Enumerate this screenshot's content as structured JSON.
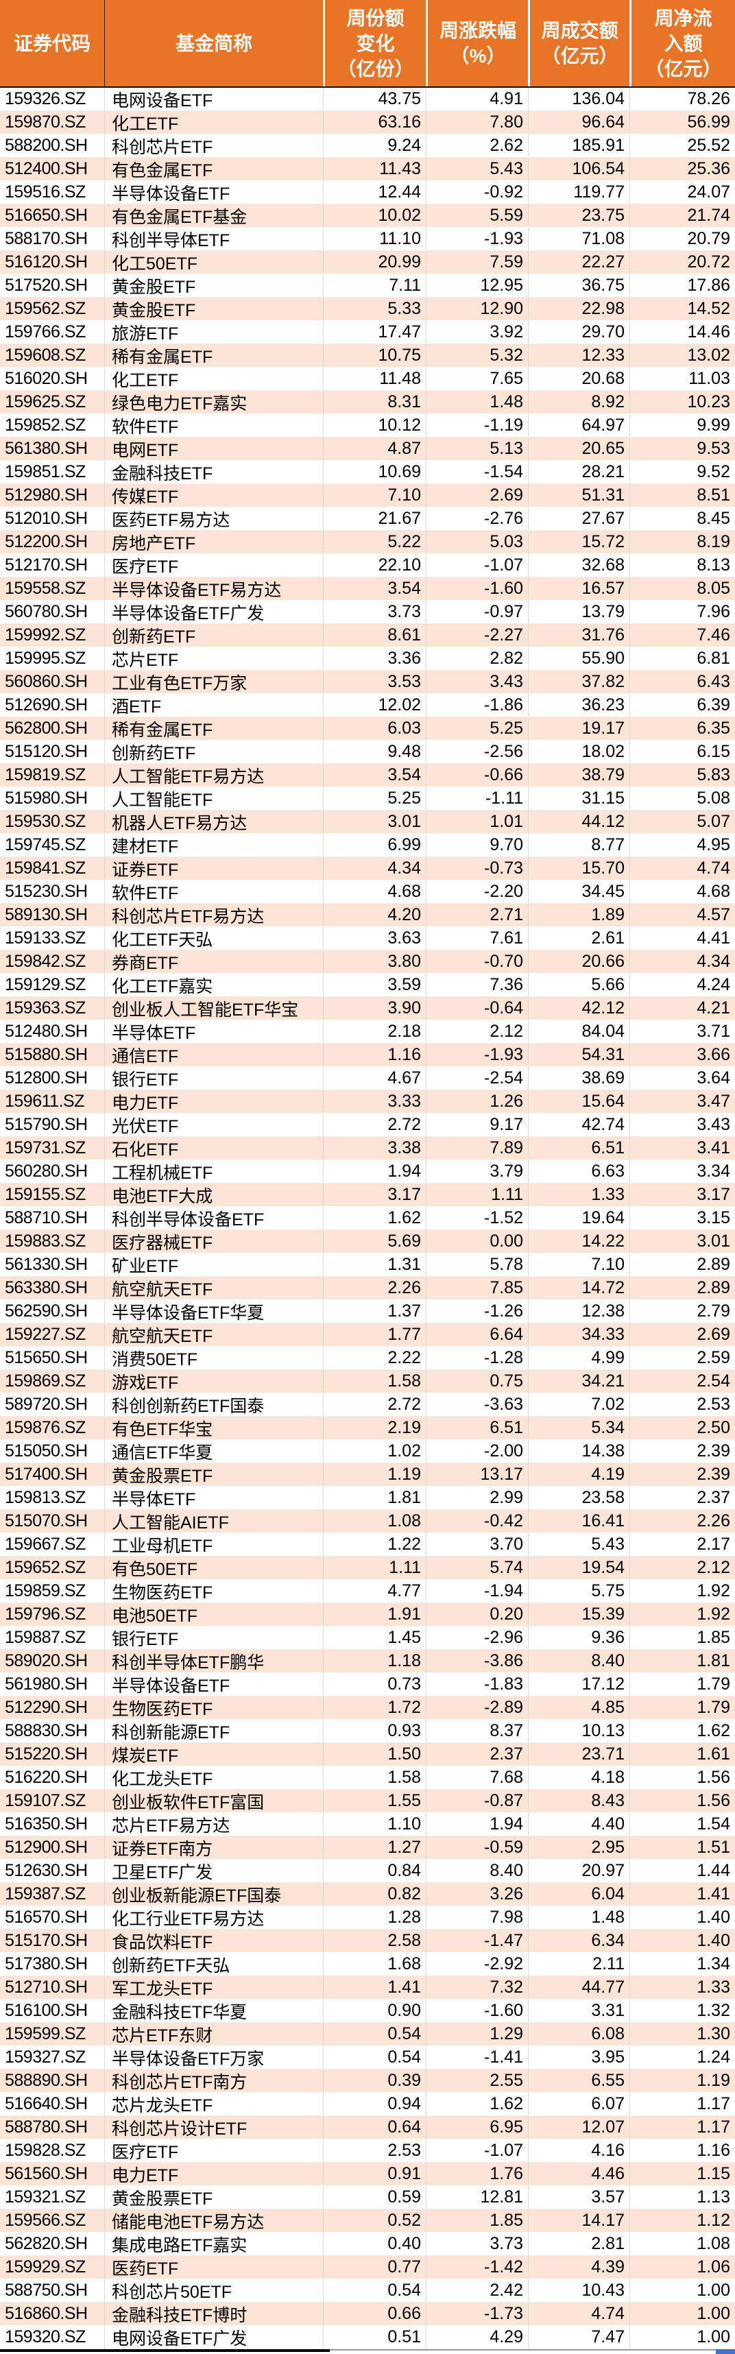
{
  "header": {
    "columns": [
      {
        "lines": [
          "证券代码"
        ]
      },
      {
        "lines": [
          "基金简称"
        ]
      },
      {
        "lines": [
          "周份额",
          "变化",
          "（亿份）"
        ]
      },
      {
        "lines": [
          "周涨跌幅",
          "（%）"
        ]
      },
      {
        "lines": [
          "周成交额",
          "（亿元）"
        ]
      },
      {
        "lines": [
          "周净流",
          "入额",
          "（亿元）"
        ]
      }
    ]
  },
  "colors": {
    "header_bg": "#E97425",
    "header_text": "#FFFFFF",
    "row_bg": "#FFFFFF",
    "row_alt_bg": "#FCE4D6",
    "body_text": "#000000",
    "bottom_accent": "#4472C4"
  },
  "chart_data": {
    "type": "table",
    "columns": [
      "证券代码",
      "基金简称",
      "周份额变化（亿份）",
      "周涨跌幅（%）",
      "周成交额（亿元）",
      "周净流入额（亿元）"
    ],
    "rows": [
      [
        "159326.SZ",
        "电网设备ETF",
        "43.75",
        "4.91",
        "136.04",
        "78.26"
      ],
      [
        "159870.SZ",
        "化工ETF",
        "63.16",
        "7.80",
        "96.64",
        "56.99"
      ],
      [
        "588200.SH",
        "科创芯片ETF",
        "9.24",
        "2.62",
        "185.91",
        "25.52"
      ],
      [
        "512400.SH",
        "有色金属ETF",
        "11.43",
        "5.43",
        "106.54",
        "25.36"
      ],
      [
        "159516.SZ",
        "半导体设备ETF",
        "12.44",
        "-0.92",
        "119.77",
        "24.07"
      ],
      [
        "516650.SH",
        "有色金属ETF基金",
        "10.02",
        "5.59",
        "23.75",
        "21.74"
      ],
      [
        "588170.SH",
        "科创半导体ETF",
        "11.10",
        "-1.93",
        "71.08",
        "20.79"
      ],
      [
        "516120.SH",
        "化工50ETF",
        "20.99",
        "7.59",
        "22.27",
        "20.72"
      ],
      [
        "517520.SH",
        "黄金股ETF",
        "7.11",
        "12.95",
        "36.75",
        "17.86"
      ],
      [
        "159562.SZ",
        "黄金股ETF",
        "5.33",
        "12.90",
        "22.98",
        "14.52"
      ],
      [
        "159766.SZ",
        "旅游ETF",
        "17.47",
        "3.92",
        "29.70",
        "14.46"
      ],
      [
        "159608.SZ",
        "稀有金属ETF",
        "10.75",
        "5.32",
        "12.33",
        "13.02"
      ],
      [
        "516020.SH",
        "化工ETF",
        "11.48",
        "7.65",
        "20.68",
        "11.03"
      ],
      [
        "159625.SZ",
        "绿色电力ETF嘉实",
        "8.31",
        "1.48",
        "8.92",
        "10.23"
      ],
      [
        "159852.SZ",
        "软件ETF",
        "10.12",
        "-1.19",
        "64.97",
        "9.99"
      ],
      [
        "561380.SH",
        "电网ETF",
        "4.87",
        "5.13",
        "20.65",
        "9.53"
      ],
      [
        "159851.SZ",
        "金融科技ETF",
        "10.69",
        "-1.54",
        "28.21",
        "9.52"
      ],
      [
        "512980.SH",
        "传媒ETF",
        "7.10",
        "2.69",
        "51.31",
        "8.51"
      ],
      [
        "512010.SH",
        "医药ETF易方达",
        "21.67",
        "-2.76",
        "27.67",
        "8.45"
      ],
      [
        "512200.SH",
        "房地产ETF",
        "5.22",
        "5.03",
        "15.72",
        "8.19"
      ],
      [
        "512170.SH",
        "医疗ETF",
        "22.10",
        "-1.07",
        "32.68",
        "8.13"
      ],
      [
        "159558.SZ",
        "半导体设备ETF易方达",
        "3.54",
        "-1.60",
        "16.57",
        "8.05"
      ],
      [
        "560780.SH",
        "半导体设备ETF广发",
        "3.73",
        "-0.97",
        "13.79",
        "7.96"
      ],
      [
        "159992.SZ",
        "创新药ETF",
        "8.61",
        "-2.27",
        "31.76",
        "7.46"
      ],
      [
        "159995.SZ",
        "芯片ETF",
        "3.36",
        "2.82",
        "55.90",
        "6.81"
      ],
      [
        "560860.SH",
        "工业有色ETF万家",
        "3.53",
        "3.43",
        "37.82",
        "6.43"
      ],
      [
        "512690.SH",
        "酒ETF",
        "12.02",
        "-1.86",
        "36.23",
        "6.39"
      ],
      [
        "562800.SH",
        "稀有金属ETF",
        "6.03",
        "5.25",
        "19.17",
        "6.35"
      ],
      [
        "515120.SH",
        "创新药ETF",
        "9.48",
        "-2.56",
        "18.02",
        "6.15"
      ],
      [
        "159819.SZ",
        "人工智能ETF易方达",
        "3.54",
        "-0.66",
        "38.79",
        "5.83"
      ],
      [
        "515980.SH",
        "人工智能ETF",
        "5.25",
        "-1.11",
        "31.15",
        "5.08"
      ],
      [
        "159530.SZ",
        "机器人ETF易方达",
        "3.01",
        "1.01",
        "44.12",
        "5.07"
      ],
      [
        "159745.SZ",
        "建材ETF",
        "6.99",
        "9.70",
        "8.77",
        "4.95"
      ],
      [
        "159841.SZ",
        "证券ETF",
        "4.34",
        "-0.73",
        "15.70",
        "4.74"
      ],
      [
        "515230.SH",
        "软件ETF",
        "4.68",
        "-2.20",
        "34.45",
        "4.68"
      ],
      [
        "589130.SH",
        "科创芯片ETF易方达",
        "4.20",
        "2.71",
        "1.89",
        "4.57"
      ],
      [
        "159133.SZ",
        "化工ETF天弘",
        "3.63",
        "7.61",
        "2.61",
        "4.41"
      ],
      [
        "159842.SZ",
        "券商ETF",
        "3.80",
        "-0.70",
        "20.66",
        "4.34"
      ],
      [
        "159129.SZ",
        "化工ETF嘉实",
        "3.59",
        "7.36",
        "5.66",
        "4.24"
      ],
      [
        "159363.SZ",
        "创业板人工智能ETF华宝",
        "3.90",
        "-0.64",
        "42.12",
        "4.21"
      ],
      [
        "512480.SH",
        "半导体ETF",
        "2.18",
        "2.12",
        "84.04",
        "3.71"
      ],
      [
        "515880.SH",
        "通信ETF",
        "1.16",
        "-1.93",
        "54.31",
        "3.66"
      ],
      [
        "512800.SH",
        "银行ETF",
        "4.67",
        "-2.54",
        "38.69",
        "3.64"
      ],
      [
        "159611.SZ",
        "电力ETF",
        "3.33",
        "1.26",
        "15.64",
        "3.47"
      ],
      [
        "515790.SH",
        "光伏ETF",
        "2.72",
        "9.17",
        "42.74",
        "3.43"
      ],
      [
        "159731.SZ",
        "石化ETF",
        "3.38",
        "7.89",
        "6.51",
        "3.41"
      ],
      [
        "560280.SH",
        "工程机械ETF",
        "1.94",
        "3.79",
        "6.63",
        "3.34"
      ],
      [
        "159155.SZ",
        "电池ETF大成",
        "3.17",
        "1.11",
        "1.33",
        "3.17"
      ],
      [
        "588710.SH",
        "科创半导体设备ETF",
        "1.62",
        "-1.52",
        "19.64",
        "3.15"
      ],
      [
        "159883.SZ",
        "医疗器械ETF",
        "5.69",
        "0.00",
        "14.22",
        "3.01"
      ],
      [
        "561330.SH",
        "矿业ETF",
        "1.31",
        "5.78",
        "7.10",
        "2.89"
      ],
      [
        "563380.SH",
        "航空航天ETF",
        "2.26",
        "7.85",
        "14.72",
        "2.89"
      ],
      [
        "562590.SH",
        "半导体设备ETF华夏",
        "1.37",
        "-1.26",
        "12.38",
        "2.79"
      ],
      [
        "159227.SZ",
        "航空航天ETF",
        "1.77",
        "6.64",
        "34.33",
        "2.69"
      ],
      [
        "515650.SH",
        "消费50ETF",
        "2.22",
        "-1.28",
        "4.99",
        "2.59"
      ],
      [
        "159869.SZ",
        "游戏ETF",
        "1.58",
        "0.75",
        "34.21",
        "2.54"
      ],
      [
        "589720.SH",
        "科创创新药ETF国泰",
        "2.72",
        "-3.63",
        "7.02",
        "2.53"
      ],
      [
        "159876.SZ",
        "有色ETF华宝",
        "2.19",
        "6.51",
        "5.34",
        "2.50"
      ],
      [
        "515050.SH",
        "通信ETF华夏",
        "1.02",
        "-2.00",
        "14.38",
        "2.39"
      ],
      [
        "517400.SH",
        "黄金股票ETF",
        "1.19",
        "13.17",
        "4.19",
        "2.39"
      ],
      [
        "159813.SZ",
        "半导体ETF",
        "1.81",
        "2.99",
        "23.58",
        "2.37"
      ],
      [
        "515070.SH",
        "人工智能AIETF",
        "1.08",
        "-0.42",
        "16.41",
        "2.26"
      ],
      [
        "159667.SZ",
        "工业母机ETF",
        "1.22",
        "3.70",
        "5.43",
        "2.17"
      ],
      [
        "159652.SZ",
        "有色50ETF",
        "1.11",
        "5.74",
        "19.54",
        "2.12"
      ],
      [
        "159859.SZ",
        "生物医药ETF",
        "4.77",
        "-1.94",
        "5.75",
        "1.92"
      ],
      [
        "159796.SZ",
        "电池50ETF",
        "1.91",
        "0.20",
        "15.39",
        "1.92"
      ],
      [
        "159887.SZ",
        "银行ETF",
        "1.45",
        "-2.96",
        "9.36",
        "1.85"
      ],
      [
        "589020.SH",
        "科创半导体ETF鹏华",
        "1.18",
        "-3.86",
        "8.40",
        "1.81"
      ],
      [
        "561980.SH",
        "半导体设备ETF",
        "0.73",
        "-1.83",
        "17.12",
        "1.79"
      ],
      [
        "512290.SH",
        "生物医药ETF",
        "1.72",
        "-2.89",
        "4.85",
        "1.79"
      ],
      [
        "588830.SH",
        "科创新能源ETF",
        "0.93",
        "8.37",
        "10.13",
        "1.62"
      ],
      [
        "515220.SH",
        "煤炭ETF",
        "1.50",
        "2.37",
        "23.71",
        "1.61"
      ],
      [
        "516220.SH",
        "化工龙头ETF",
        "1.58",
        "7.68",
        "4.18",
        "1.56"
      ],
      [
        "159107.SZ",
        "创业板软件ETF富国",
        "1.55",
        "-0.87",
        "8.43",
        "1.56"
      ],
      [
        "516350.SH",
        "芯片ETF易方达",
        "1.10",
        "1.94",
        "4.40",
        "1.54"
      ],
      [
        "512900.SH",
        "证券ETF南方",
        "1.27",
        "-0.59",
        "2.95",
        "1.51"
      ],
      [
        "512630.SH",
        "卫星ETF广发",
        "0.84",
        "8.40",
        "20.97",
        "1.44"
      ],
      [
        "159387.SZ",
        "创业板新能源ETF国泰",
        "0.82",
        "3.26",
        "6.04",
        "1.41"
      ],
      [
        "516570.SH",
        "化工行业ETF易方达",
        "1.28",
        "7.98",
        "1.48",
        "1.40"
      ],
      [
        "515170.SH",
        "食品饮料ETF",
        "2.58",
        "-1.47",
        "6.34",
        "1.40"
      ],
      [
        "517380.SH",
        "创新药ETF天弘",
        "1.68",
        "-2.92",
        "2.11",
        "1.34"
      ],
      [
        "512710.SH",
        "军工龙头ETF",
        "1.41",
        "7.32",
        "44.77",
        "1.33"
      ],
      [
        "516100.SH",
        "金融科技ETF华夏",
        "0.90",
        "-1.60",
        "3.31",
        "1.32"
      ],
      [
        "159599.SZ",
        "芯片ETF东财",
        "0.54",
        "1.29",
        "6.08",
        "1.30"
      ],
      [
        "159327.SZ",
        "半导体设备ETF万家",
        "0.54",
        "-1.41",
        "3.95",
        "1.24"
      ],
      [
        "588890.SH",
        "科创芯片ETF南方",
        "0.39",
        "2.55",
        "6.55",
        "1.19"
      ],
      [
        "516640.SH",
        "芯片龙头ETF",
        "0.94",
        "1.62",
        "6.07",
        "1.17"
      ],
      [
        "588780.SH",
        "科创芯片设计ETF",
        "0.64",
        "6.95",
        "12.07",
        "1.17"
      ],
      [
        "159828.SZ",
        "医疗ETF",
        "2.53",
        "-1.07",
        "4.16",
        "1.16"
      ],
      [
        "561560.SH",
        "电力ETF",
        "0.91",
        "1.76",
        "4.46",
        "1.15"
      ],
      [
        "159321.SZ",
        "黄金股票ETF",
        "0.59",
        "12.81",
        "3.57",
        "1.13"
      ],
      [
        "159566.SZ",
        "储能电池ETF易方达",
        "0.52",
        "1.85",
        "14.17",
        "1.12"
      ],
      [
        "562820.SH",
        "集成电路ETF嘉实",
        "0.40",
        "3.73",
        "2.81",
        "1.08"
      ],
      [
        "159929.SZ",
        "医药ETF",
        "0.77",
        "-1.42",
        "4.39",
        "1.06"
      ],
      [
        "588750.SH",
        "科创芯片50ETF",
        "0.54",
        "2.42",
        "10.43",
        "1.00"
      ],
      [
        "516860.SH",
        "金融科技ETF博时",
        "0.66",
        "-1.73",
        "4.74",
        "1.00"
      ],
      [
        "159320.SZ",
        "电网设备ETF广发",
        "0.51",
        "4.29",
        "7.47",
        "1.00"
      ]
    ]
  }
}
